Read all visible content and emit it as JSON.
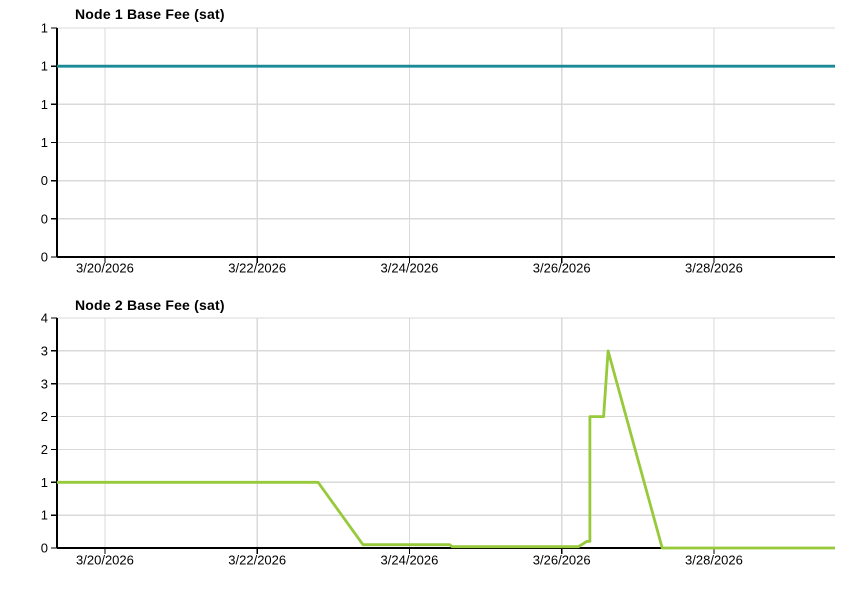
{
  "page": {
    "background_color": "#ffffff",
    "grid_color": "#d9d9d9",
    "axis_color": "#000000",
    "text_color": "#000000"
  },
  "chart_data": [
    {
      "type": "line",
      "title": "Node 1 Base Fee (sat)",
      "xlabel": "",
      "ylabel": "",
      "grid": true,
      "legend": "none",
      "x": {
        "tick_labels": [
          "3/20/2026",
          "3/22/2026",
          "3/24/2026",
          "3/26/2026",
          "3/28/2026"
        ],
        "tick_days": [
          0.63,
          2.63,
          4.63,
          6.63,
          8.63
        ],
        "range_days": [
          0,
          10.22
        ]
      },
      "y": {
        "range": [
          0,
          1.2
        ],
        "tick_step": 0.2,
        "tick_labels_top_to_bottom": [
          "1",
          "1",
          "1",
          "1",
          "0",
          "0",
          "0"
        ]
      },
      "series": [
        {
          "name": "node1_base_fee_sat",
          "color": "#1b8a96",
          "points": [
            [
              0,
              1
            ],
            [
              10.22,
              1
            ]
          ]
        }
      ]
    },
    {
      "type": "line",
      "title": "Node 2 Base Fee (sat)",
      "xlabel": "",
      "ylabel": "",
      "grid": true,
      "legend": "none",
      "x": {
        "tick_labels": [
          "3/20/2026",
          "3/22/2026",
          "3/24/2026",
          "3/26/2026",
          "3/28/2026"
        ],
        "tick_days": [
          0.63,
          2.63,
          4.63,
          6.63,
          8.63
        ],
        "range_days": [
          0,
          10.22
        ]
      },
      "y": {
        "range": [
          0,
          3.5
        ],
        "tick_step": 0.5,
        "tick_labels_top_to_bottom": [
          "4",
          "3",
          "3",
          "2",
          "2",
          "1",
          "1",
          "0"
        ]
      },
      "series": [
        {
          "name": "node2_base_fee_sat",
          "color": "#97ca3b",
          "points": [
            [
              0,
              1
            ],
            [
              3.43,
              1
            ],
            [
              4.02,
              0.05
            ],
            [
              5.16,
              0.05
            ],
            [
              5.19,
              0.02
            ],
            [
              6.85,
              0.02
            ],
            [
              6.96,
              0.1
            ],
            [
              7.0,
              0.1
            ],
            [
              7.0,
              2
            ],
            [
              7.18,
              2
            ],
            [
              7.24,
              3
            ],
            [
              7.95,
              0
            ],
            [
              10.22,
              0
            ]
          ]
        }
      ]
    }
  ]
}
